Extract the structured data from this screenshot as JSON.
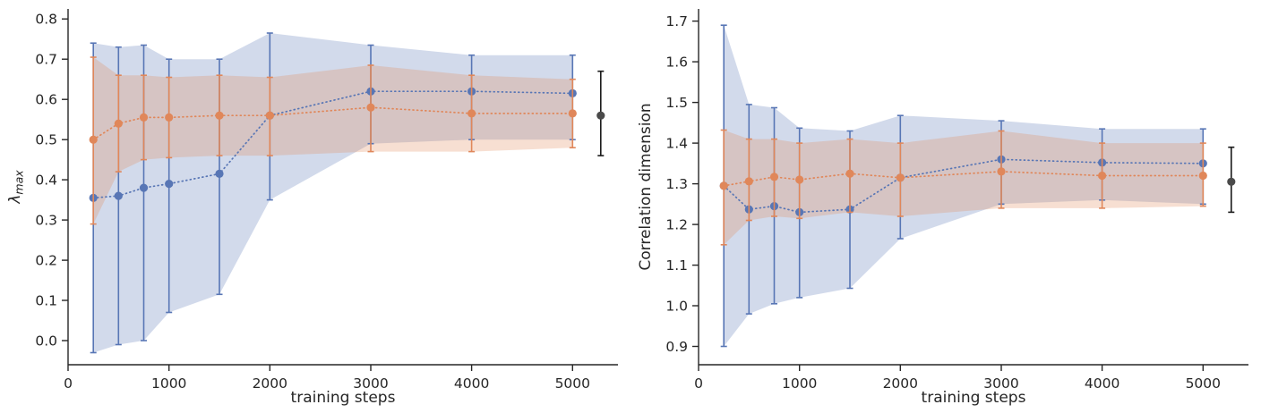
{
  "chart_data": [
    {
      "type": "line",
      "title": "",
      "xlabel": "training steps",
      "ylabel": "λ_max",
      "xlim": [
        0,
        5450
      ],
      "ylim": [
        -0.06,
        0.825
      ],
      "xticks": [
        0,
        1000,
        2000,
        3000,
        4000,
        5000
      ],
      "yticks": [
        0.0,
        0.1,
        0.2,
        0.3,
        0.4,
        0.5,
        0.6,
        0.7,
        0.8
      ],
      "ytick_decimals": 1,
      "grid": false,
      "legend": "none",
      "x": [
        250,
        500,
        750,
        1000,
        1500,
        2000,
        3000,
        4000,
        5000
      ],
      "series": [
        {
          "name": "blue-series",
          "color": "#5876b5",
          "values": [
            0.355,
            0.36,
            0.38,
            0.39,
            0.415,
            0.56,
            0.62,
            0.62,
            0.615
          ],
          "lower": [
            -0.03,
            -0.01,
            0.0,
            0.07,
            0.115,
            0.35,
            0.49,
            0.5,
            0.5
          ],
          "upper": [
            0.74,
            0.73,
            0.735,
            0.7,
            0.7,
            0.765,
            0.735,
            0.71,
            0.71
          ]
        },
        {
          "name": "orange-series",
          "color": "#e0875a",
          "values": [
            0.5,
            0.54,
            0.555,
            0.555,
            0.56,
            0.56,
            0.58,
            0.565,
            0.565
          ],
          "lower": [
            0.29,
            0.42,
            0.45,
            0.455,
            0.46,
            0.46,
            0.47,
            0.47,
            0.48
          ],
          "upper": [
            0.705,
            0.66,
            0.66,
            0.655,
            0.66,
            0.655,
            0.685,
            0.66,
            0.65
          ]
        }
      ],
      "reference_point": {
        "x": 5280,
        "y": 0.56,
        "lower": 0.46,
        "upper": 0.67,
        "color": "#4a4a4a"
      }
    },
    {
      "type": "line",
      "title": "",
      "xlabel": "training steps",
      "ylabel": "Correlation dimension",
      "xlim": [
        0,
        5450
      ],
      "ylim": [
        0.855,
        1.73
      ],
      "xticks": [
        0,
        1000,
        2000,
        3000,
        4000,
        5000
      ],
      "yticks": [
        0.9,
        1.0,
        1.1,
        1.2,
        1.3,
        1.4,
        1.5,
        1.6,
        1.7
      ],
      "ytick_decimals": 1,
      "grid": false,
      "legend": "none",
      "x": [
        250,
        500,
        750,
        1000,
        1500,
        2000,
        3000,
        4000,
        5000
      ],
      "series": [
        {
          "name": "blue-series",
          "color": "#5876b5",
          "values": [
            1.295,
            1.237,
            1.245,
            1.23,
            1.237,
            1.315,
            1.36,
            1.352,
            1.35
          ],
          "lower": [
            0.9,
            0.98,
            1.005,
            1.02,
            1.043,
            1.165,
            1.25,
            1.26,
            1.25
          ],
          "upper": [
            1.69,
            1.495,
            1.487,
            1.437,
            1.43,
            1.468,
            1.455,
            1.435,
            1.435
          ]
        },
        {
          "name": "orange-series",
          "color": "#e0875a",
          "values": [
            1.295,
            1.306,
            1.317,
            1.31,
            1.325,
            1.315,
            1.33,
            1.32,
            1.32
          ],
          "lower": [
            1.15,
            1.21,
            1.22,
            1.215,
            1.23,
            1.22,
            1.24,
            1.24,
            1.245
          ],
          "upper": [
            1.432,
            1.41,
            1.41,
            1.4,
            1.41,
            1.4,
            1.43,
            1.4,
            1.4
          ]
        }
      ],
      "reference_point": {
        "x": 5280,
        "y": 1.305,
        "lower": 1.23,
        "upper": 1.39,
        "color": "#4a4a4a"
      }
    }
  ],
  "style": {
    "axis_color": "#262626",
    "band_opacity": 0.27,
    "background": "#ffffff"
  }
}
